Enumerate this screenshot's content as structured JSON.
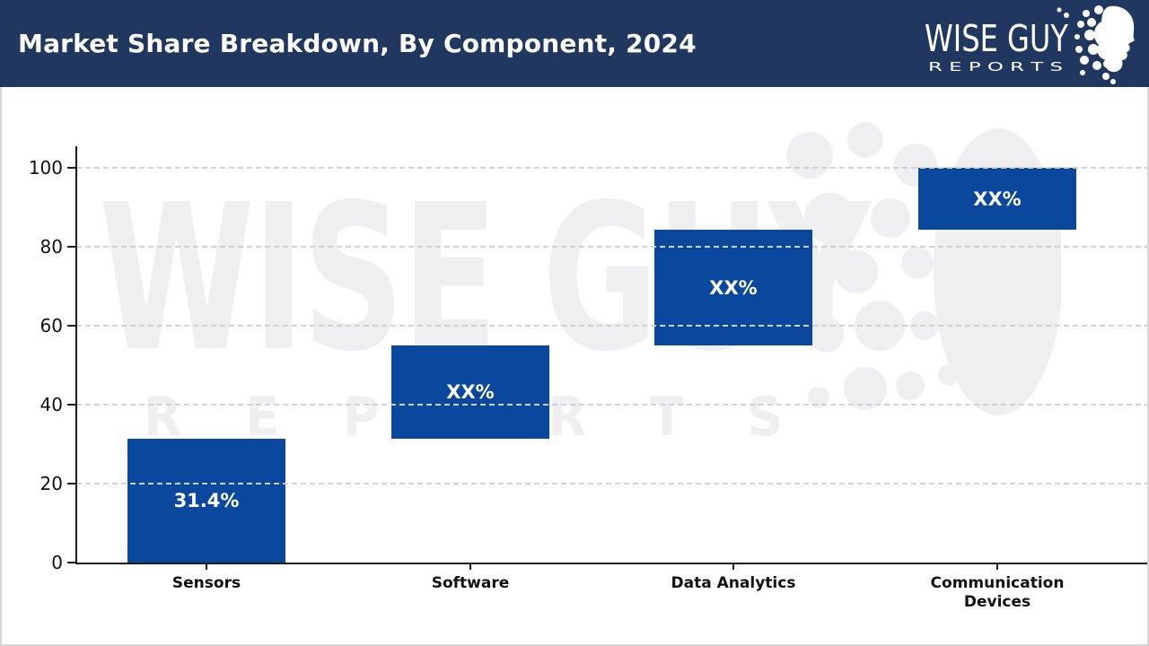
{
  "header": {
    "title": "Market Share Breakdown, By Component, 2024",
    "logo": {
      "line1": "WISE GUY",
      "line2": "R E P O R T S"
    }
  },
  "watermark": {
    "line1": "WISE GUY",
    "line2": "R E P O R T S"
  },
  "chart_data": {
    "type": "bar",
    "subtype": "waterfall",
    "title": "Market Share Breakdown, By Component, 2024",
    "categories": [
      "Sensors",
      "Software",
      "Data Analytics",
      "Communication Devices"
    ],
    "segments": [
      {
        "category": "Sensors",
        "start": 0,
        "end": 31.4,
        "label": "31.4%"
      },
      {
        "category": "Software",
        "start": 31.4,
        "end": 55,
        "label": "XX%"
      },
      {
        "category": "Data Analytics",
        "start": 55,
        "end": 84.3,
        "label": "XX%"
      },
      {
        "category": "Communication Devices",
        "start": 84.3,
        "end": 100,
        "label": "XX%"
      }
    ],
    "yticks": [
      0,
      20,
      40,
      60,
      80,
      100
    ],
    "ylim": [
      0,
      105
    ],
    "xlabel": "",
    "ylabel": "",
    "grid": "horizontal-dashed",
    "legend": "none",
    "bar_color": "#0a489e",
    "value_label_color": "#ffffff"
  },
  "colors": {
    "header_bg": "#20375f",
    "bar": "#0a489e",
    "grid": "#d2d2d2",
    "axis": "#1c1c1c",
    "watermark": "#efeff2",
    "frame_border": "#d6d6d6"
  }
}
